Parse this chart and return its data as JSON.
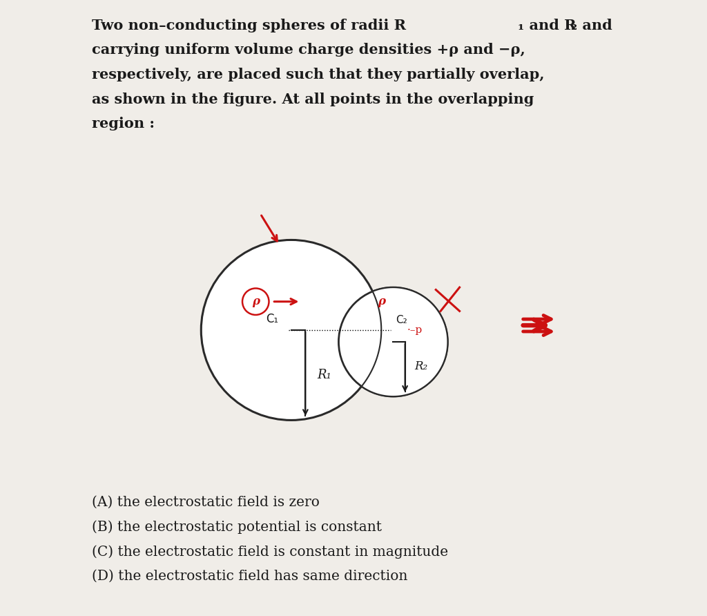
{
  "bg_color": "#f0ede8",
  "circle_bg": "#ffffff",
  "text_color": "#1a1a1a",
  "circle_color": "#2a2a2a",
  "red_color": "#cc1111",
  "dark_red": "#8b0000",
  "options": [
    "(A) the electrostatic field is zero",
    "(B) the electrostatic potential is constant",
    "(C) the electrostatic field is constant in magnitude",
    "(D) the electrostatic field has same direction"
  ],
  "c1x": 0.35,
  "c1y": 0.46,
  "c1rx": 0.19,
  "c1ry": 0.22,
  "c2x": 0.565,
  "c2y": 0.435,
  "c2rx": 0.115,
  "c2ry": 0.135
}
